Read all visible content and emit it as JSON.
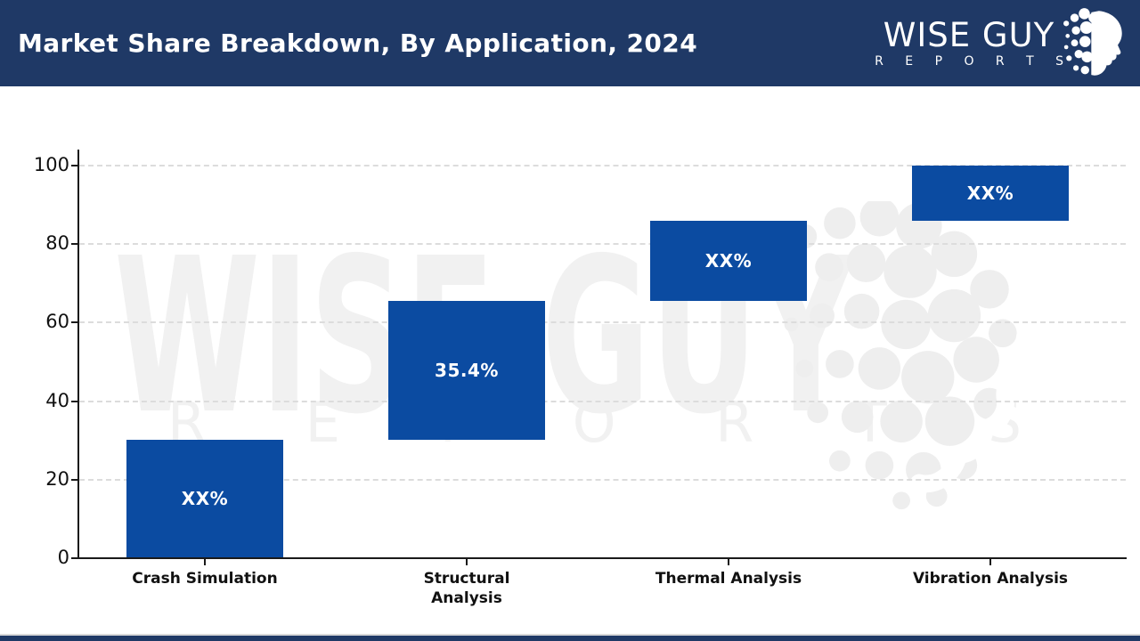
{
  "header": {
    "title": "Market Share Breakdown, By Application, 2024",
    "bg_color": "#1f3966",
    "logo": {
      "line1": "WISE GUY",
      "line2": "R E P O R T S"
    }
  },
  "watermark": {
    "line1": "WISE GUY",
    "line2": "R E P O R T S"
  },
  "chart_data": {
    "type": "bar",
    "subtype": "waterfall",
    "title": "Market Share Breakdown, By Application, 2024",
    "categories": [
      "Crash Simulation",
      "Structural\nAnalysis",
      "Thermal Analysis",
      "Vibration Analysis"
    ],
    "segments": [
      {
        "category": "Crash Simulation",
        "start": 0,
        "end": 30.2,
        "value": 30.2,
        "label": "XX%"
      },
      {
        "category": "Structural Analysis",
        "start": 30.2,
        "end": 65.6,
        "value": 35.4,
        "label": "35.4%"
      },
      {
        "category": "Thermal Analysis",
        "start": 65.6,
        "end": 85.9,
        "value": 20.3,
        "label": "XX%"
      },
      {
        "category": "Vibration Analysis",
        "start": 85.9,
        "end": 100,
        "value": 14.1,
        "label": "XX%"
      }
    ],
    "ylim": [
      0,
      100
    ],
    "yticks": [
      0,
      20,
      40,
      60,
      80,
      100
    ],
    "grid": "horizontal-dashed",
    "legend": "none",
    "bar_color": "#0b4ba1",
    "bar_label_color": "#ffffff",
    "axis_color": "#1a1a1a"
  }
}
